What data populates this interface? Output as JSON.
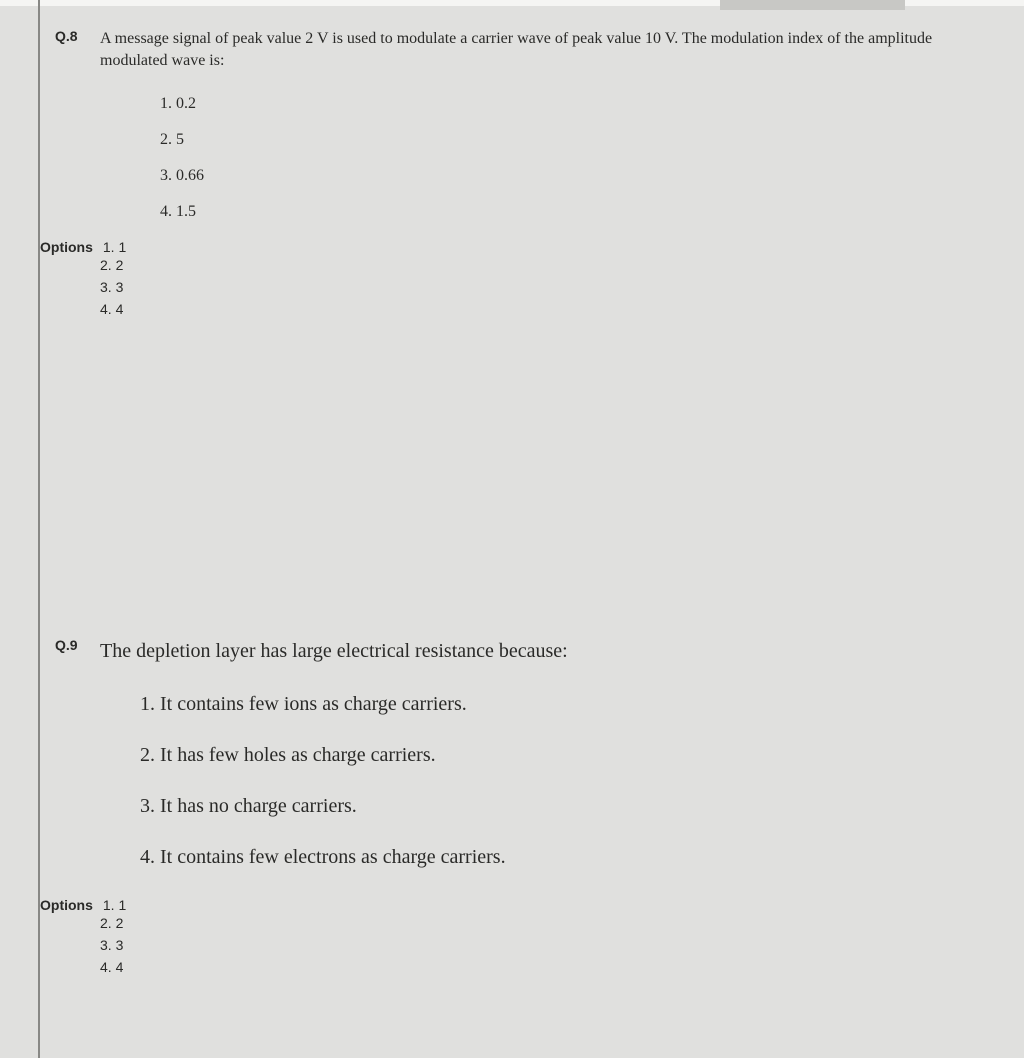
{
  "q8": {
    "number": "Q.8",
    "text": "A message signal of peak value 2 V is used to modulate a carrier wave of peak value 10 V. The modulation index of the amplitude modulated wave is:",
    "choices": [
      "1. 0.2",
      "2. 5",
      "3. 0.66",
      "4. 1.5"
    ]
  },
  "q9": {
    "number": "Q.9",
    "text": "The depletion layer has large electrical resistance because:",
    "choices": [
      "1. It contains few ions as charge carriers.",
      "2. It has few holes as charge carriers.",
      "3. It has no charge carriers.",
      "4. It contains few electrons as charge carriers."
    ]
  },
  "options": {
    "label": "Options",
    "items": [
      "1. 1",
      "2. 2",
      "3. 3",
      "4. 4"
    ]
  }
}
